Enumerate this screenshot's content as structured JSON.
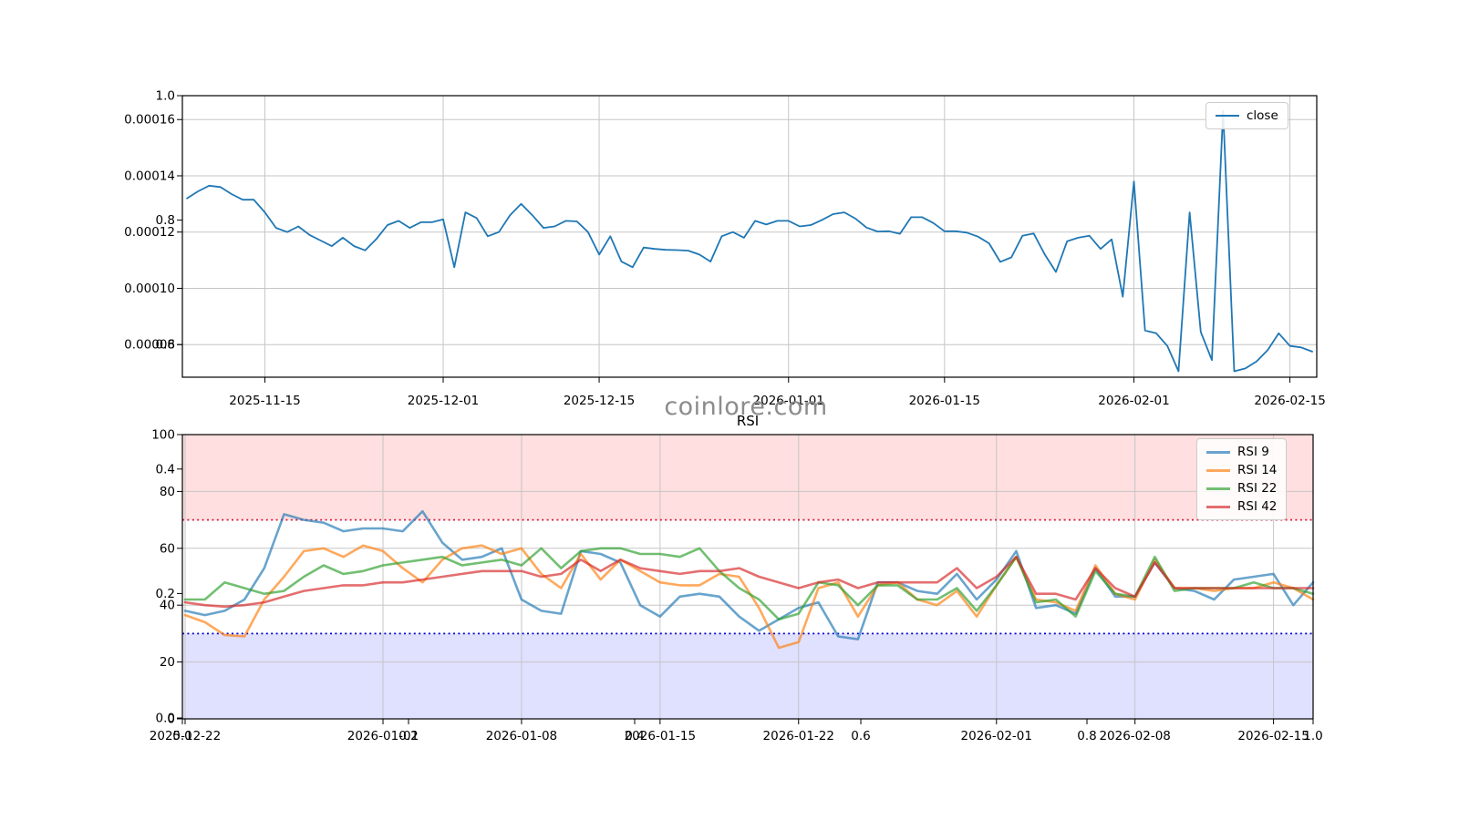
{
  "watermark": "coinlore.com",
  "price_chart": {
    "legend": [
      {
        "label": "close",
        "color": "#1f77b4"
      }
    ],
    "x_tick_labels": [
      "2025-11-15",
      "2025-12-01",
      "2025-12-15",
      "2026-01-01",
      "2026-01-15",
      "2026-02-01",
      "2026-02-15"
    ],
    "y_ticks": [
      {
        "label": "0.00016",
        "value": 0.00016
      },
      {
        "label": "0.00014",
        "value": 0.00014
      },
      {
        "label": "0.00012",
        "value": 0.00012
      },
      {
        "label": "0.00010",
        "value": 0.0001
      },
      {
        "label": "0.00008",
        "value": 8e-05
      }
    ]
  },
  "rsi_chart": {
    "title": "RSI",
    "legend": [
      {
        "label": "RSI 9",
        "color": "#1f77b4"
      },
      {
        "label": "RSI 14",
        "color": "#ff7f0e"
      },
      {
        "label": "RSI 22",
        "color": "#2ca02c"
      },
      {
        "label": "RSI 42",
        "color": "#d62728"
      }
    ],
    "x_tick_labels": [
      "2025-12-22",
      "2026-01-01",
      "2026-01-08",
      "2026-01-15",
      "2026-01-22",
      "2026-02-01",
      "2026-02-08",
      "2026-02-15"
    ],
    "y_ticks": [
      {
        "label": "0",
        "value": 0
      },
      {
        "label": "20",
        "value": 20
      },
      {
        "label": "40",
        "value": 40
      },
      {
        "label": "60",
        "value": 60
      },
      {
        "label": "80",
        "value": 80
      },
      {
        "label": "100",
        "value": 100
      }
    ]
  },
  "hidden_axis": {
    "y_ticks": [
      {
        "label": "1.0",
        "value": 1.0
      },
      {
        "label": "0.8",
        "value": 0.8
      },
      {
        "label": "0.6",
        "value": 0.6
      },
      {
        "label": "0.4",
        "value": 0.4
      },
      {
        "label": "0.2",
        "value": 0.2
      },
      {
        "label": "0.0",
        "value": 0.0
      }
    ],
    "x_ticks": [
      {
        "label": "0.0",
        "value": 0.0
      },
      {
        "label": "0.2",
        "value": 0.2
      },
      {
        "label": "0.4",
        "value": 0.4
      },
      {
        "label": "0.6",
        "value": 0.6
      },
      {
        "label": "0.8",
        "value": 0.8
      },
      {
        "label": "1.0",
        "value": 1.0
      }
    ]
  },
  "colors": {
    "grid": "#c6c6c6",
    "spine": "#000000",
    "watermark_gray": "#8c8c8c"
  },
  "chart_data": [
    {
      "type": "line",
      "title": "",
      "xlabel": "",
      "ylabel": "",
      "legend_position": "upper right",
      "grid": true,
      "ylim": [
        6.84e-05,
        0.0001685
      ],
      "x": [
        "2025-11-08",
        "2025-11-09",
        "2025-11-10",
        "2025-11-11",
        "2025-11-12",
        "2025-11-13",
        "2025-11-14",
        "2025-11-15",
        "2025-11-16",
        "2025-11-17",
        "2025-11-18",
        "2025-11-19",
        "2025-11-20",
        "2025-11-21",
        "2025-11-22",
        "2025-11-23",
        "2025-11-24",
        "2025-11-25",
        "2025-11-26",
        "2025-11-27",
        "2025-11-28",
        "2025-11-29",
        "2025-11-30",
        "2025-12-01",
        "2025-12-02",
        "2025-12-03",
        "2025-12-04",
        "2025-12-05",
        "2025-12-06",
        "2025-12-07",
        "2025-12-08",
        "2025-12-09",
        "2025-12-10",
        "2025-12-11",
        "2025-12-12",
        "2025-12-13",
        "2025-12-14",
        "2025-12-15",
        "2025-12-16",
        "2025-12-17",
        "2025-12-18",
        "2025-12-19",
        "2025-12-20",
        "2025-12-21",
        "2025-12-22",
        "2025-12-23",
        "2025-12-24",
        "2025-12-25",
        "2025-12-26",
        "2025-12-27",
        "2025-12-28",
        "2025-12-29",
        "2025-12-30",
        "2025-12-31",
        "2026-01-01",
        "2026-01-02",
        "2026-01-03",
        "2026-01-04",
        "2026-01-05",
        "2026-01-06",
        "2026-01-07",
        "2026-01-08",
        "2026-01-09",
        "2026-01-10",
        "2026-01-11",
        "2026-01-12",
        "2026-01-13",
        "2026-01-14",
        "2026-01-15",
        "2026-01-16",
        "2026-01-17",
        "2026-01-18",
        "2026-01-19",
        "2026-01-20",
        "2026-01-21",
        "2026-01-22",
        "2026-01-23",
        "2026-01-24",
        "2026-01-25",
        "2026-01-26",
        "2026-01-27",
        "2026-01-28",
        "2026-01-29",
        "2026-01-30",
        "2026-01-31",
        "2026-02-01",
        "2026-02-02",
        "2026-02-03",
        "2026-02-04",
        "2026-02-05",
        "2026-02-06",
        "2026-02-07",
        "2026-02-08",
        "2026-02-09",
        "2026-02-10",
        "2026-02-11",
        "2026-02-12",
        "2026-02-13",
        "2026-02-14",
        "2026-02-15",
        "2026-02-16",
        "2026-02-17"
      ],
      "series": [
        {
          "name": "close",
          "color": "#1f77b4",
          "values": [
            0.000132,
            0.0001345,
            0.0001365,
            0.000136,
            0.0001335,
            0.0001315,
            0.0001315,
            0.000127,
            0.0001215,
            0.00012,
            0.000122,
            0.000119,
            0.000117,
            0.000115,
            0.000118,
            0.000115,
            0.0001135,
            0.0001175,
            0.0001225,
            0.000124,
            0.0001215,
            0.0001235,
            0.0001235,
            0.0001245,
            0.0001075,
            0.000127,
            0.000125,
            0.0001185,
            0.00012,
            0.000126,
            0.00013,
            0.000126,
            0.0001215,
            0.000122,
            0.000124,
            0.0001238,
            0.00012,
            0.000112,
            0.0001185,
            0.0001095,
            0.0001075,
            0.0001145,
            0.000114,
            0.0001137,
            0.0001136,
            0.0001134,
            0.000112,
            0.0001095,
            0.0001185,
            0.00012,
            0.000118,
            0.000124,
            0.0001227,
            0.000124,
            0.000124,
            0.000122,
            0.0001225,
            0.0001243,
            0.0001264,
            0.000127,
            0.0001248,
            0.0001216,
            0.0001202,
            0.0001203,
            0.0001194,
            0.0001253,
            0.0001253,
            0.0001232,
            0.0001203,
            0.0001203,
            0.0001198,
            0.0001184,
            0.000116,
            0.0001094,
            0.000111,
            0.0001187,
            0.0001195,
            0.000112,
            0.0001058,
            0.0001167,
            0.000118,
            0.0001187,
            0.000114,
            0.0001174,
            9.7e-05,
            0.000138,
            8.5e-05,
            8.4e-05,
            7.95e-05,
            7.05e-05,
            0.000127,
            8.45e-05,
            7.45e-05,
            0.000163,
            7.05e-05,
            7.15e-05,
            7.4e-05,
            7.8e-05,
            8.4e-05,
            7.95e-05,
            7.9e-05,
            7.75e-05
          ]
        }
      ]
    },
    {
      "type": "line",
      "title": "RSI",
      "xlabel": "",
      "ylabel": "",
      "legend_position": "upper right",
      "grid": true,
      "ylim": [
        0,
        100
      ],
      "bands": [
        {
          "from": 70,
          "to": 100,
          "color": "#ff0000",
          "alpha": 0.125,
          "name": "overbought"
        },
        {
          "from": 0,
          "to": 30,
          "color": "#0000ff",
          "alpha": 0.12,
          "name": "oversold"
        }
      ],
      "hlines": [
        {
          "y": 70,
          "color": "#dc143c",
          "style": "dotted",
          "name": "overbought-threshold"
        },
        {
          "y": 30,
          "color": "#0000cd",
          "style": "dotted",
          "name": "oversold-threshold"
        }
      ],
      "x": [
        "2025-12-22",
        "2025-12-23",
        "2025-12-24",
        "2025-12-25",
        "2025-12-26",
        "2025-12-27",
        "2025-12-28",
        "2025-12-29",
        "2025-12-30",
        "2025-12-31",
        "2026-01-01",
        "2026-01-02",
        "2026-01-03",
        "2026-01-04",
        "2026-01-05",
        "2026-01-06",
        "2026-01-07",
        "2026-01-08",
        "2026-01-09",
        "2026-01-10",
        "2026-01-11",
        "2026-01-12",
        "2026-01-13",
        "2026-01-14",
        "2026-01-15",
        "2026-01-16",
        "2026-01-17",
        "2026-01-18",
        "2026-01-19",
        "2026-01-20",
        "2026-01-21",
        "2026-01-22",
        "2026-01-23",
        "2026-01-24",
        "2026-01-25",
        "2026-01-26",
        "2026-01-27",
        "2026-01-28",
        "2026-01-29",
        "2026-01-30",
        "2026-01-31",
        "2026-02-01",
        "2026-02-02",
        "2026-02-03",
        "2026-02-04",
        "2026-02-05",
        "2026-02-06",
        "2026-02-07",
        "2026-02-08",
        "2026-02-09",
        "2026-02-10",
        "2026-02-11",
        "2026-02-12",
        "2026-02-13",
        "2026-02-14",
        "2026-02-15",
        "2026-02-16",
        "2026-02-17"
      ],
      "series": [
        {
          "name": "RSI 9",
          "color": "#1f77b4",
          "values": [
            38,
            36.5,
            38,
            42,
            53,
            72,
            70,
            69,
            66,
            67,
            67,
            66,
            73,
            62,
            56,
            57,
            60,
            42,
            38,
            37,
            59,
            58,
            55,
            40,
            36,
            43,
            44,
            43,
            36,
            31,
            35,
            39,
            41,
            29,
            28,
            48,
            48,
            45,
            44,
            51,
            42,
            49,
            59,
            39,
            40,
            37,
            53,
            43,
            43,
            55,
            46,
            45,
            42,
            49,
            50,
            51,
            40,
            48
          ]
        },
        {
          "name": "RSI 14",
          "color": "#ff7f0e",
          "values": [
            36.5,
            34,
            29.5,
            29,
            42,
            50,
            59,
            60,
            57,
            61,
            59,
            53,
            48,
            56,
            60,
            61,
            58,
            60,
            51,
            46,
            58,
            49,
            56,
            52,
            48,
            47,
            47,
            51,
            50,
            39,
            25,
            27,
            46,
            48,
            36,
            47,
            48,
            42,
            40,
            45,
            36,
            47,
            57,
            42,
            41,
            38,
            54,
            44,
            42,
            56,
            46,
            46,
            45,
            46,
            46,
            48,
            46,
            42
          ]
        },
        {
          "name": "RSI 22",
          "color": "#2ca02c",
          "values": [
            42,
            42,
            48,
            46,
            44,
            45,
            50,
            54,
            51,
            52,
            54,
            55,
            56,
            57,
            54,
            55,
            56,
            54,
            60,
            53,
            59,
            60,
            60,
            58,
            58,
            57,
            60,
            52,
            46,
            42,
            35,
            37,
            48,
            47,
            40,
            47,
            47,
            42,
            42,
            46,
            38,
            47,
            57,
            41,
            42,
            36,
            52,
            44,
            43,
            57,
            45,
            46,
            46,
            46,
            48,
            46,
            46,
            44
          ]
        },
        {
          "name": "RSI 42",
          "color": "#d62728",
          "values": [
            41,
            40,
            39.5,
            40,
            41,
            43,
            45,
            46,
            47,
            47,
            48,
            48,
            49,
            50,
            51,
            52,
            52,
            52,
            50,
            51,
            56,
            52,
            56,
            53,
            52,
            51,
            52,
            52,
            53,
            50,
            48,
            46,
            48,
            49,
            46,
            48,
            48,
            48,
            48,
            53,
            46,
            50,
            57,
            44,
            44,
            42,
            53,
            46,
            43,
            55,
            46,
            46,
            46,
            46,
            46,
            46,
            46,
            46
          ]
        }
      ]
    }
  ]
}
